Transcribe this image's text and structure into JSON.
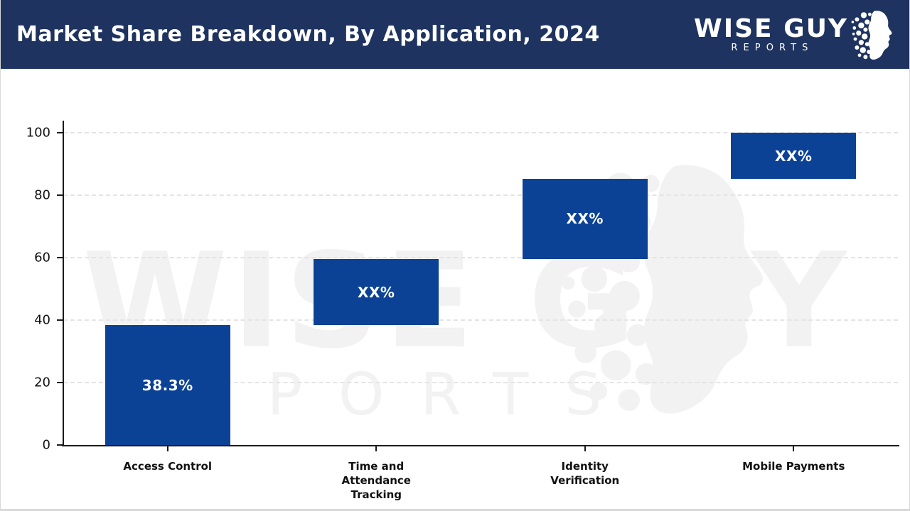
{
  "header": {
    "title": "Market Share Breakdown, By Application, 2024",
    "bg_color": "#1e335f",
    "logo": {
      "line1": "WISE GUY",
      "line2": "REPORTS"
    }
  },
  "watermark": {
    "line1": "WISE GUY",
    "line2": "REPORTS"
  },
  "chart_data": {
    "type": "bar",
    "subtype": "waterfall-segmented",
    "title": "Market Share Breakdown, By Application, 2024",
    "xlabel": "",
    "ylabel": "",
    "ylim": [
      0,
      100
    ],
    "yticks": [
      0,
      20,
      40,
      60,
      80,
      100
    ],
    "grid": "horizontal-dashed",
    "legend": "none",
    "bar_color": "#0b4295",
    "bar_label_color": "#ffffff",
    "categories": [
      [
        "Access Control"
      ],
      [
        "Time and",
        "Attendance",
        "Tracking"
      ],
      [
        "Identity",
        "Verification"
      ],
      [
        "Mobile Payments"
      ]
    ],
    "segments": [
      {
        "name": "Access Control",
        "start": 0,
        "end": 38.3,
        "value": 38.3,
        "value_label": "38.3%"
      },
      {
        "name": "Time and Attendance Tracking",
        "start": 38.3,
        "end": 59.6,
        "value": 21.3,
        "value_label": "XX%"
      },
      {
        "name": "Identity Verification",
        "start": 59.6,
        "end": 85.2,
        "value": 25.6,
        "value_label": "XX%"
      },
      {
        "name": "Mobile Payments",
        "start": 85.2,
        "end": 100,
        "value": 14.8,
        "value_label": "XX%"
      }
    ]
  }
}
